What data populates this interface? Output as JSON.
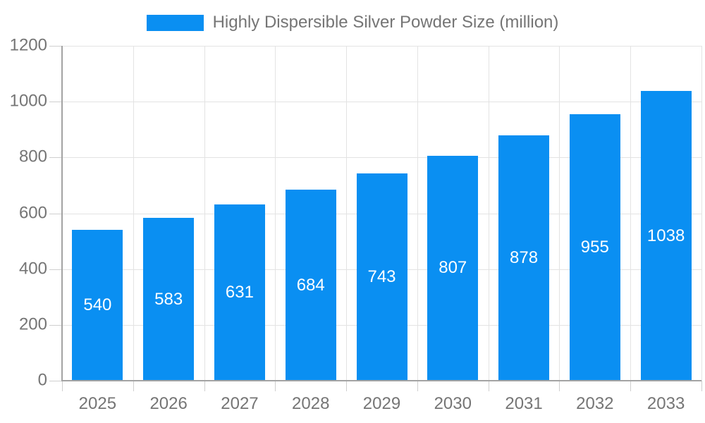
{
  "chart_data": {
    "type": "bar",
    "title": "Highly Dispersible Silver Powder Size (million)",
    "categories": [
      "2025",
      "2026",
      "2027",
      "2028",
      "2029",
      "2030",
      "2031",
      "2032",
      "2033"
    ],
    "series": [
      {
        "name": "Highly Dispersible Silver Powder Size (million)",
        "values": [
          540,
          583,
          631,
          684,
          743,
          807,
          878,
          955,
          1038
        ]
      }
    ],
    "values": [
      540,
      583,
      631,
      684,
      743,
      807,
      878,
      955,
      1038
    ],
    "bar_value_labels": [
      "540",
      "583",
      "631",
      "684",
      "743",
      "807",
      "878",
      "955",
      "1038"
    ],
    "xlabel": "",
    "ylabel": "",
    "ylim": [
      0,
      1200
    ],
    "yticks": [
      0,
      200,
      400,
      600,
      800,
      1000,
      1200
    ],
    "grid": true,
    "legend_position": "top",
    "colors": {
      "bar": "#0a8ff2",
      "grid": "#e3e3e3",
      "tick": "#cfcfcf",
      "axis": "#a3a3a3",
      "text": "#757575",
      "bar_label": "#ffffff",
      "background": "#ffffff"
    }
  }
}
